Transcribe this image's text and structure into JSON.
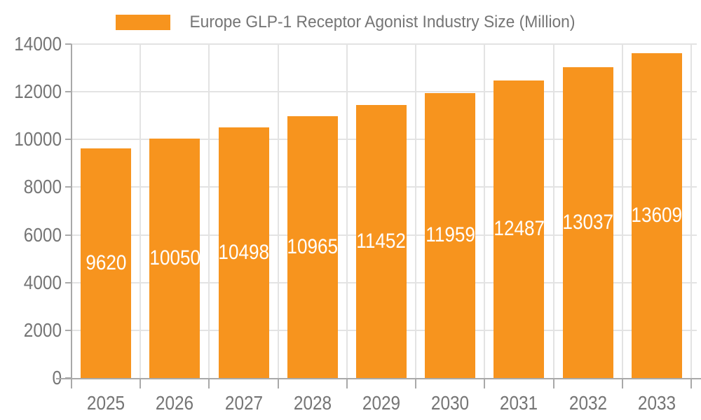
{
  "chart_data": {
    "type": "bar",
    "title": "Europe GLP-1 Receptor Agonist Industry Size (Million)",
    "categories": [
      "2025",
      "2026",
      "2027",
      "2028",
      "2029",
      "2030",
      "2031",
      "2032",
      "2033"
    ],
    "values": [
      9620,
      10050,
      10498,
      10965,
      11452,
      11959,
      12487,
      13037,
      13609
    ],
    "xlabel": "",
    "ylabel": "",
    "ylim": [
      0,
      14000
    ],
    "ytick_step": 2000,
    "ytick_labels": [
      "0",
      "2000",
      "4000",
      "6000",
      "8000",
      "10000",
      "12000",
      "14000"
    ],
    "grid": true,
    "legend_position": "top",
    "bar_color": "#F7941E",
    "bar_label_color": "#FFFFFF",
    "axis_color": "#A9A9A9",
    "grid_color": "#E3E3E3",
    "tick_label_color": "#757575",
    "title_color": "#757575"
  }
}
